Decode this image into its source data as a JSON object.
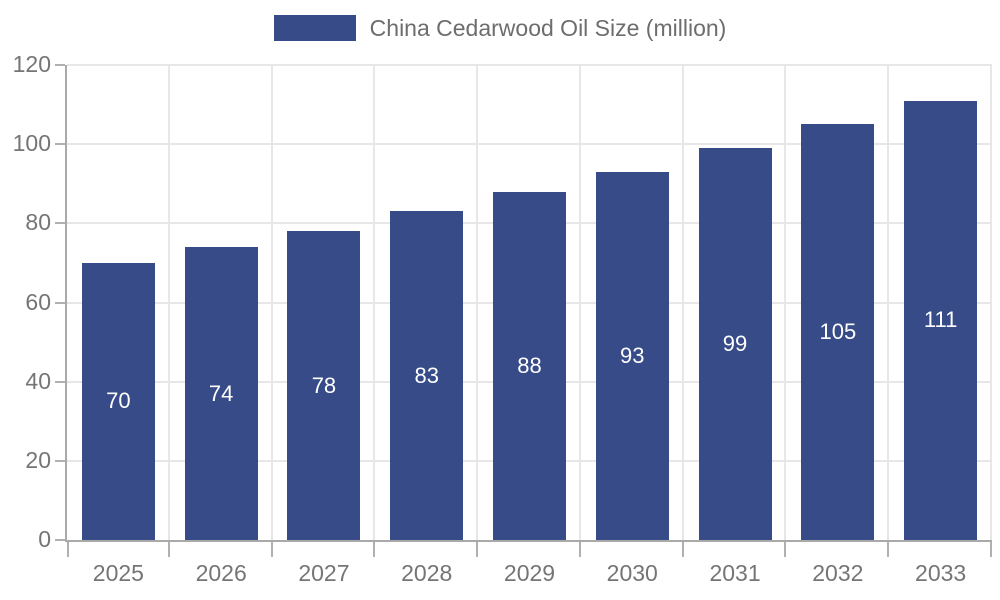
{
  "legend": {
    "label": "China Cedarwood Oil Size (million)"
  },
  "chart_data": {
    "type": "bar",
    "title": "China Cedarwood Oil Size (million)",
    "categories": [
      "2025",
      "2026",
      "2027",
      "2028",
      "2029",
      "2030",
      "2031",
      "2032",
      "2033"
    ],
    "values": [
      70,
      74,
      78,
      83,
      88,
      93,
      99,
      105,
      111
    ],
    "value_labels": [
      "70",
      "74",
      "78",
      "83",
      "88",
      "93",
      "99",
      "105",
      "111"
    ],
    "xlabel": "",
    "ylabel": "",
    "ylim": [
      0,
      120
    ],
    "yticks": [
      0,
      20,
      40,
      60,
      80,
      100,
      120
    ],
    "legend_entries": [
      "China Cedarwood Oil Size (million)"
    ],
    "legend_position": "top",
    "grid": true,
    "colors": {
      "bar": "#364b87",
      "value_label": "#ffffff",
      "axis_line": "#a9a9a9",
      "tick_mark": "#b0b0b0",
      "gridline": "#e7e7e7",
      "tick_label": "#757575",
      "legend_text": "#6d6d6d"
    }
  }
}
